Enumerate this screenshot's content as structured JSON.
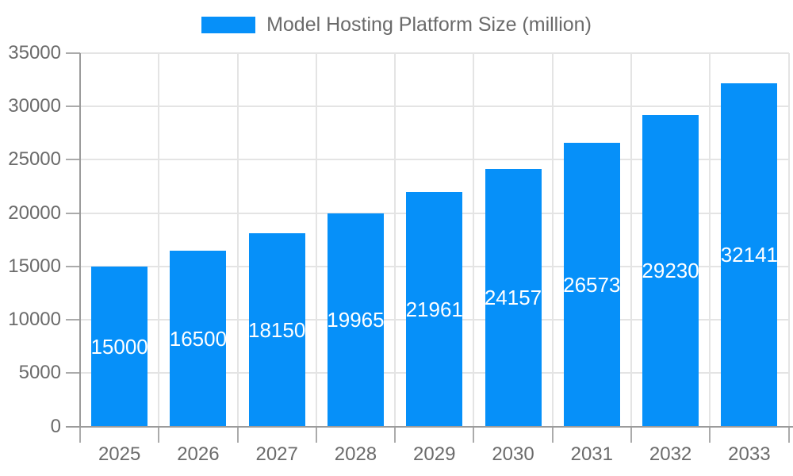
{
  "legend": {
    "label": "Model Hosting Platform Size (million)"
  },
  "colors": {
    "bar": "#0690F9",
    "grid": "#e4e4e4",
    "axis_line": "#9b9b9b",
    "tick_mark": "#ababab",
    "tick_text": "#6b6b6b",
    "legend_text": "#6a6a6a",
    "bar_label_text": "#ffffff",
    "background": "#ffffff"
  },
  "chart_data": {
    "type": "bar",
    "title": "Model Hosting Platform Size (million)",
    "categories": [
      "2025",
      "2026",
      "2027",
      "2028",
      "2029",
      "2030",
      "2031",
      "2032",
      "2033"
    ],
    "series": [
      {
        "name": "Model Hosting Platform Size (million)",
        "values": [
          15000,
          16500,
          18150,
          19965,
          21961,
          24157,
          26573,
          29230,
          32141
        ]
      }
    ],
    "data_labels": [
      "15000",
      "16500",
      "18150",
      "19965",
      "21961",
      "24157",
      "26573",
      "29230",
      "32141"
    ],
    "data_labels_position": "inside-center",
    "xlabel": "",
    "ylabel": "",
    "ylim": [
      0,
      35000
    ],
    "y_ticks": [
      0,
      5000,
      10000,
      15000,
      20000,
      25000,
      30000,
      35000
    ],
    "grid": true,
    "legend_position": "top-center"
  }
}
